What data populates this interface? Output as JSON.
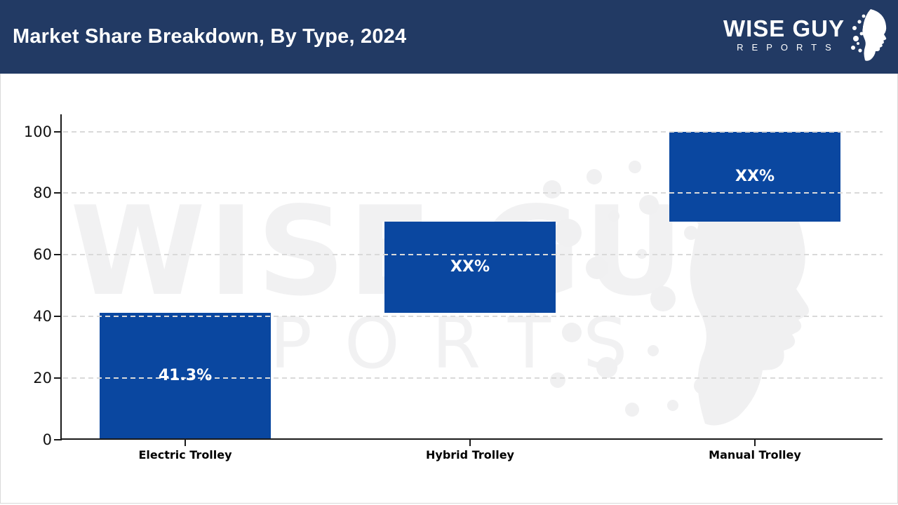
{
  "header": {
    "title": "Market Share Breakdown, By Type, 2024",
    "logo": {
      "line1": "WISE GUY",
      "line2": "REPORTS"
    }
  },
  "watermark": {
    "line1": "WISE GUY",
    "line2": "REPORTS"
  },
  "colors": {
    "header_bg": "#223a64",
    "title_text": "#ffffff",
    "bar": "#0a47a0",
    "bar_label": "#ffffff",
    "grid": "#d9d9d9",
    "axis": "#1a1a1a",
    "watermark": "#f1f1f2"
  },
  "chart_data": {
    "type": "bar",
    "subtype": "stacked-waterfall",
    "title": "Market Share Breakdown, By Type, 2024",
    "categories": [
      "Electric Trolley",
      "Hybrid Trolley",
      "Manual Trolley"
    ],
    "segments": [
      {
        "category": "Electric Trolley",
        "start": 0,
        "end": 41.3,
        "label": "41.3%"
      },
      {
        "category": "Hybrid Trolley",
        "start": 41.3,
        "end": 70.7,
        "label": "XX%"
      },
      {
        "category": "Manual Trolley",
        "start": 70.7,
        "end": 100,
        "label": "XX%"
      }
    ],
    "xlabel": "",
    "ylabel": "",
    "yticks": [
      0,
      20,
      40,
      60,
      80,
      100
    ],
    "ylim": [
      0,
      105.5
    ],
    "grid": {
      "axis": "y",
      "style": "dashed",
      "on_top": true
    },
    "legend": "none",
    "bar_labels_inside": true
  }
}
